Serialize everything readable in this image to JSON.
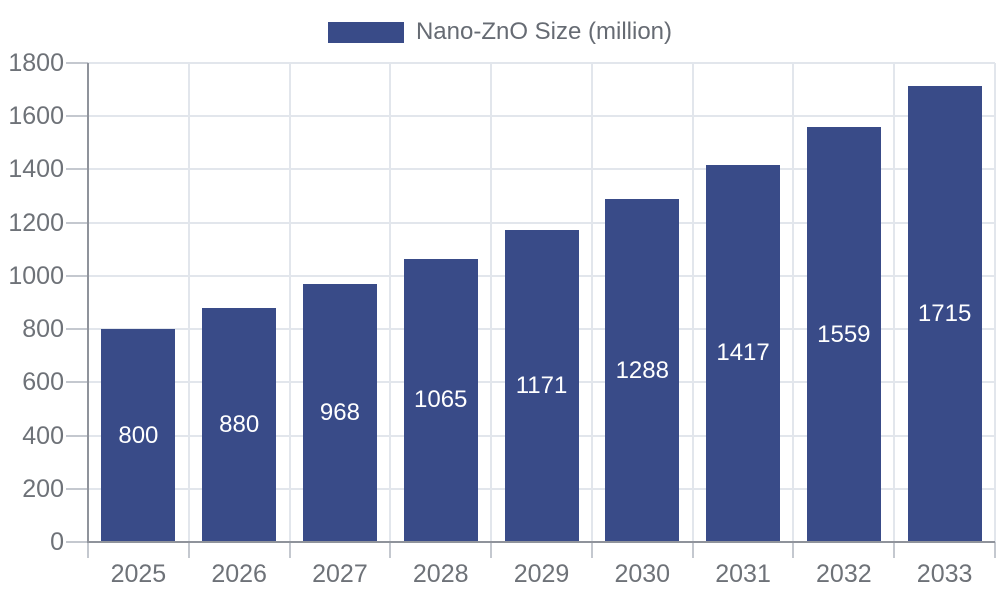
{
  "chart_data": {
    "type": "bar",
    "title": "",
    "xlabel": "",
    "ylabel": "",
    "series_label": "Nano-ZnO Size (million)",
    "categories": [
      "2025",
      "2026",
      "2027",
      "2028",
      "2029",
      "2030",
      "2031",
      "2032",
      "2033"
    ],
    "values": [
      800,
      880,
      968,
      1065,
      1171,
      1288,
      1417,
      1559,
      1715
    ],
    "yticks": [
      0,
      200,
      400,
      600,
      800,
      1000,
      1200,
      1400,
      1600,
      1800
    ],
    "ylim": [
      0,
      1800
    ],
    "grid": true,
    "bar_value_labels_position": "inside-center",
    "legend_position": "top-center",
    "colors": {
      "bar": "#394b88",
      "value_label": "#ffffff",
      "grid_line": "#e2e6ec",
      "tick_line": "#c4c8cf",
      "axis_line": "#8f939b",
      "tick_text": "#6e7278",
      "legend_text": "#666b73",
      "background": "#ffffff"
    }
  }
}
